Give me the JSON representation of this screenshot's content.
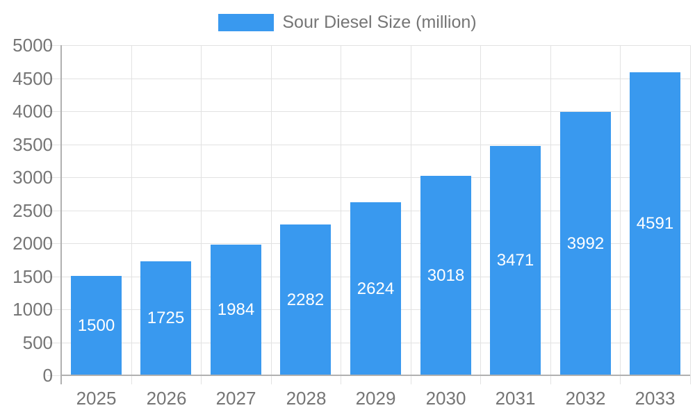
{
  "legend": {
    "label": "Sour Diesel Size (million)"
  },
  "chart_data": {
    "type": "bar",
    "title": "",
    "legend_position": "top-center",
    "categories": [
      "2025",
      "2026",
      "2027",
      "2028",
      "2029",
      "2030",
      "2031",
      "2032",
      "2033"
    ],
    "series": [
      {
        "name": "Sour Diesel Size (million)",
        "values": [
          1500,
          1725,
          1984,
          2282,
          2624,
          3018,
          3471,
          3992,
          4591
        ]
      }
    ],
    "value_labels": [
      "1500",
      "1725",
      "1984",
      "2282",
      "2624",
      "3018",
      "3471",
      "3992",
      "4591"
    ],
    "value_labels_position": "inside-center",
    "xlabel": "",
    "ylabel": "",
    "ylim": [
      0,
      5000
    ],
    "ytick_step": 500,
    "ytick_labels": [
      "0",
      "500",
      "1000",
      "1500",
      "2000",
      "2500",
      "3000",
      "3500",
      "4000",
      "4500",
      "5000"
    ],
    "grid": true,
    "style": {
      "bar_color": "#3999EF",
      "grid_color": "#e2e2e2",
      "axis_color": "#b0b0b0",
      "label_color": "#757575",
      "value_label_color": "#ffffff",
      "background": "#ffffff"
    }
  }
}
